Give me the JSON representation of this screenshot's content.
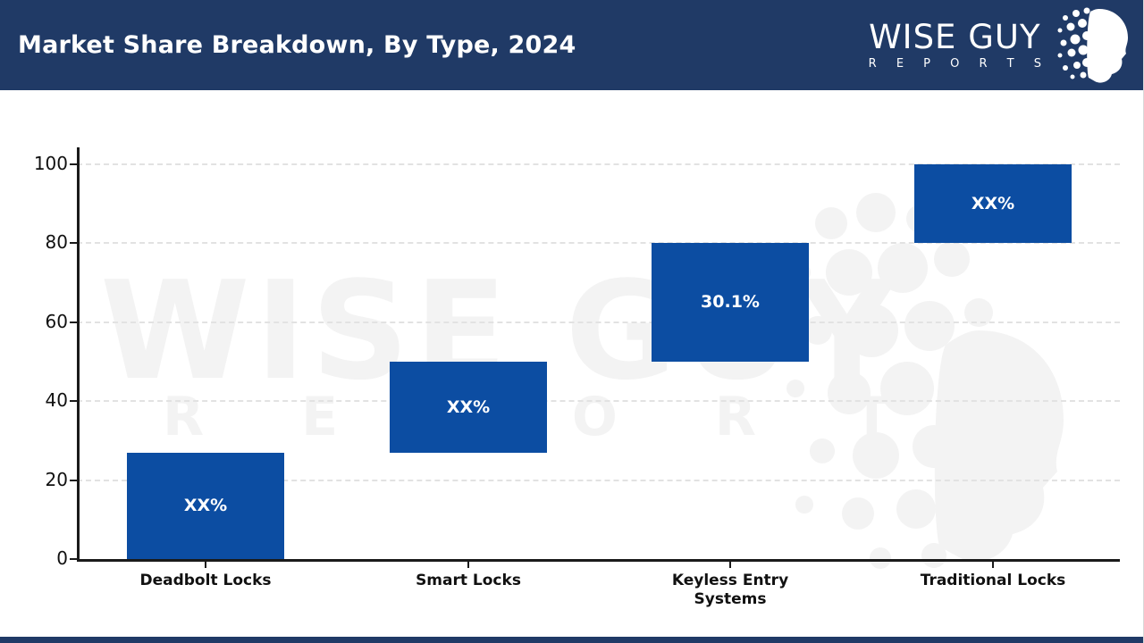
{
  "header": {
    "title": "Market Share Breakdown, By Type, 2024",
    "logo": {
      "line1": "WISE GUY",
      "line2": "R E P O R T S"
    }
  },
  "watermark": {
    "line1": "WISE GUY",
    "line2": "R E P O R T S"
  },
  "chart_data": {
    "type": "bar",
    "subtype": "waterfall",
    "title": "Market Share Breakdown, By Type, 2024",
    "categories": [
      "Deadbolt Locks",
      "Smart Locks",
      "Keyless Entry Systems",
      "Traditional Locks"
    ],
    "series": [
      {
        "name": "Market Share",
        "segments": [
          {
            "category": "Deadbolt Locks",
            "start": 0,
            "end": 27,
            "label": "XX%"
          },
          {
            "category": "Smart Locks",
            "start": 27,
            "end": 50,
            "label": "XX%"
          },
          {
            "category": "Keyless Entry Systems",
            "start": 50,
            "end": 80.1,
            "label": "30.1%"
          },
          {
            "category": "Traditional Locks",
            "start": 80.1,
            "end": 100,
            "label": "XX%"
          }
        ]
      }
    ],
    "xlabel": "",
    "ylabel": "",
    "ylim": [
      0,
      100
    ],
    "yticks": [
      0,
      20,
      40,
      60,
      80,
      100
    ],
    "grid": "horizontal-dashed",
    "legend": "none",
    "bar_color": "#0c4da2",
    "bar_label_color": "#ffffff",
    "axis_color": "#1a1a1a",
    "header_bg_color": "#203a66"
  }
}
